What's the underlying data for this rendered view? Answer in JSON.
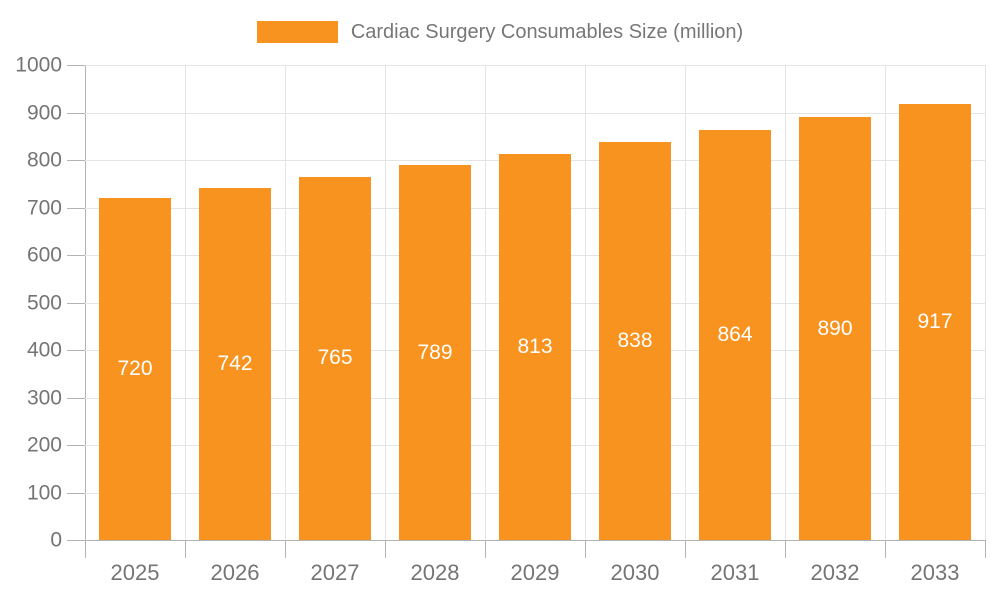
{
  "legend": {
    "label": "Cardiac Surgery Consumables Size (million)"
  },
  "colors": {
    "bar": "#F7931E",
    "grid": "#E4E4E4",
    "axis": "#B3B3B3",
    "axis_text": "#757575",
    "legend_text": "#777777",
    "value_text": "#FFFFFF"
  },
  "chart_data": {
    "type": "bar",
    "title": "Cardiac Surgery Consumables Size (million)",
    "categories": [
      "2025",
      "2026",
      "2027",
      "2028",
      "2029",
      "2030",
      "2031",
      "2032",
      "2033"
    ],
    "values": [
      720,
      742,
      765,
      789,
      813,
      838,
      864,
      890,
      917
    ],
    "xlabel": "",
    "ylabel": "",
    "ylim": [
      0,
      1000
    ],
    "ytick_step": 100,
    "grid": true,
    "legend_position": "top-center",
    "bar_color": "#F7931E",
    "value_labels": "centered-white"
  }
}
